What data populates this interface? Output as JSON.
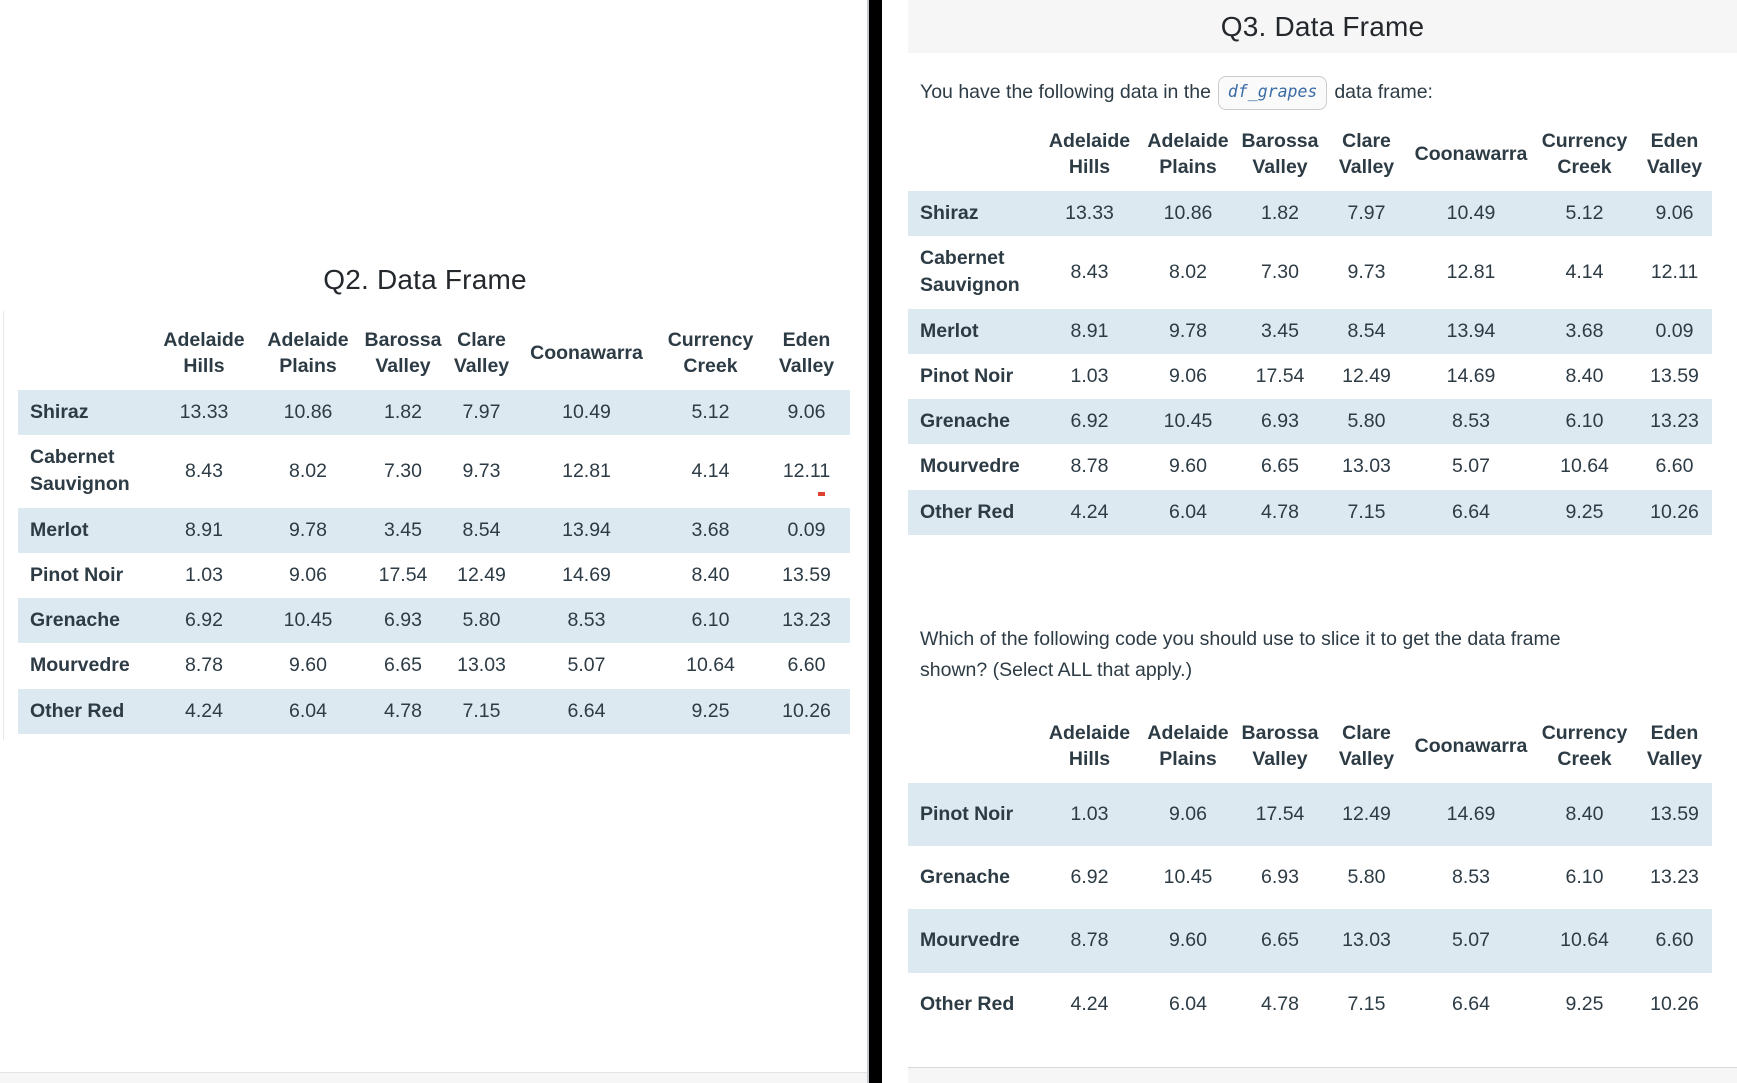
{
  "left_panel": {
    "title": "Q2. Data Frame",
    "table": {
      "headers": [
        "",
        "Adelaide\nHills",
        "Adelaide\nPlains",
        "Barossa\nValley",
        "Clare\nValley",
        "Coonawarra",
        "Currency\nCreek",
        "Eden\nValley"
      ],
      "rows": [
        {
          "label": "Shiraz",
          "values": [
            "13.33",
            "10.86",
            "1.82",
            "7.97",
            "10.49",
            "5.12",
            "9.06"
          ]
        },
        {
          "label": "Cabernet Sauvignon",
          "values": [
            "8.43",
            "8.02",
            "7.30",
            "9.73",
            "12.81",
            "4.14",
            "12.11"
          ]
        },
        {
          "label": "Merlot",
          "values": [
            "8.91",
            "9.78",
            "3.45",
            "8.54",
            "13.94",
            "3.68",
            "0.09"
          ]
        },
        {
          "label": "Pinot Noir",
          "values": [
            "1.03",
            "9.06",
            "17.54",
            "12.49",
            "14.69",
            "8.40",
            "13.59"
          ]
        },
        {
          "label": "Grenache",
          "values": [
            "6.92",
            "10.45",
            "6.93",
            "5.80",
            "8.53",
            "6.10",
            "13.23"
          ]
        },
        {
          "label": "Mourvedre",
          "values": [
            "8.78",
            "9.60",
            "6.65",
            "13.03",
            "5.07",
            "10.64",
            "6.60"
          ]
        },
        {
          "label": "Other Red",
          "values": [
            "4.24",
            "6.04",
            "4.78",
            "7.15",
            "6.64",
            "9.25",
            "10.26"
          ]
        }
      ]
    }
  },
  "right_panel": {
    "title": "Q3. Data Frame",
    "intro": {
      "before": "You have the following data in the",
      "code": "df_grapes",
      "after": "data frame:"
    },
    "full_table": {
      "headers": [
        "",
        "Adelaide\nHills",
        "Adelaide\nPlains",
        "Barossa\nValley",
        "Clare\nValley",
        "Coonawarra",
        "Currency\nCreek",
        "Eden\nValley"
      ],
      "rows": [
        {
          "label": "Shiraz",
          "values": [
            "13.33",
            "10.86",
            "1.82",
            "7.97",
            "10.49",
            "5.12",
            "9.06"
          ]
        },
        {
          "label": "Cabernet Sauvignon",
          "values": [
            "8.43",
            "8.02",
            "7.30",
            "9.73",
            "12.81",
            "4.14",
            "12.11"
          ]
        },
        {
          "label": "Merlot",
          "values": [
            "8.91",
            "9.78",
            "3.45",
            "8.54",
            "13.94",
            "3.68",
            "0.09"
          ]
        },
        {
          "label": "Pinot Noir",
          "values": [
            "1.03",
            "9.06",
            "17.54",
            "12.49",
            "14.69",
            "8.40",
            "13.59"
          ]
        },
        {
          "label": "Grenache",
          "values": [
            "6.92",
            "10.45",
            "6.93",
            "5.80",
            "8.53",
            "6.10",
            "13.23"
          ]
        },
        {
          "label": "Mourvedre",
          "values": [
            "8.78",
            "9.60",
            "6.65",
            "13.03",
            "5.07",
            "10.64",
            "6.60"
          ]
        },
        {
          "label": "Other Red",
          "values": [
            "4.24",
            "6.04",
            "4.78",
            "7.15",
            "6.64",
            "9.25",
            "10.26"
          ]
        }
      ]
    },
    "question": "Which of the following code you should use to slice it to get the data frame\nshown? (Select ALL that apply.)",
    "sliced_table": {
      "headers": [
        "",
        "Adelaide\nHills",
        "Adelaide\nPlains",
        "Barossa\nValley",
        "Clare\nValley",
        "Coonawarra",
        "Currency\nCreek",
        "Eden\nValley"
      ],
      "rows": [
        {
          "label": "Pinot Noir",
          "values": [
            "1.03",
            "9.06",
            "17.54",
            "12.49",
            "14.69",
            "8.40",
            "13.59"
          ]
        },
        {
          "label": "Grenache",
          "values": [
            "6.92",
            "10.45",
            "6.93",
            "5.80",
            "8.53",
            "6.10",
            "13.23"
          ]
        },
        {
          "label": "Mourvedre",
          "values": [
            "8.78",
            "9.60",
            "6.65",
            "13.03",
            "5.07",
            "10.64",
            "6.60"
          ]
        },
        {
          "label": "Other Red",
          "values": [
            "4.24",
            "6.04",
            "4.78",
            "7.15",
            "6.64",
            "9.25",
            "10.26"
          ]
        }
      ]
    }
  },
  "colors": {
    "row_stripe": "#dce9f1",
    "table_text": "#2d3b45",
    "title_band_bg": "#f6f6f6",
    "divider": "#000000",
    "code_text": "#3a6ba5"
  }
}
